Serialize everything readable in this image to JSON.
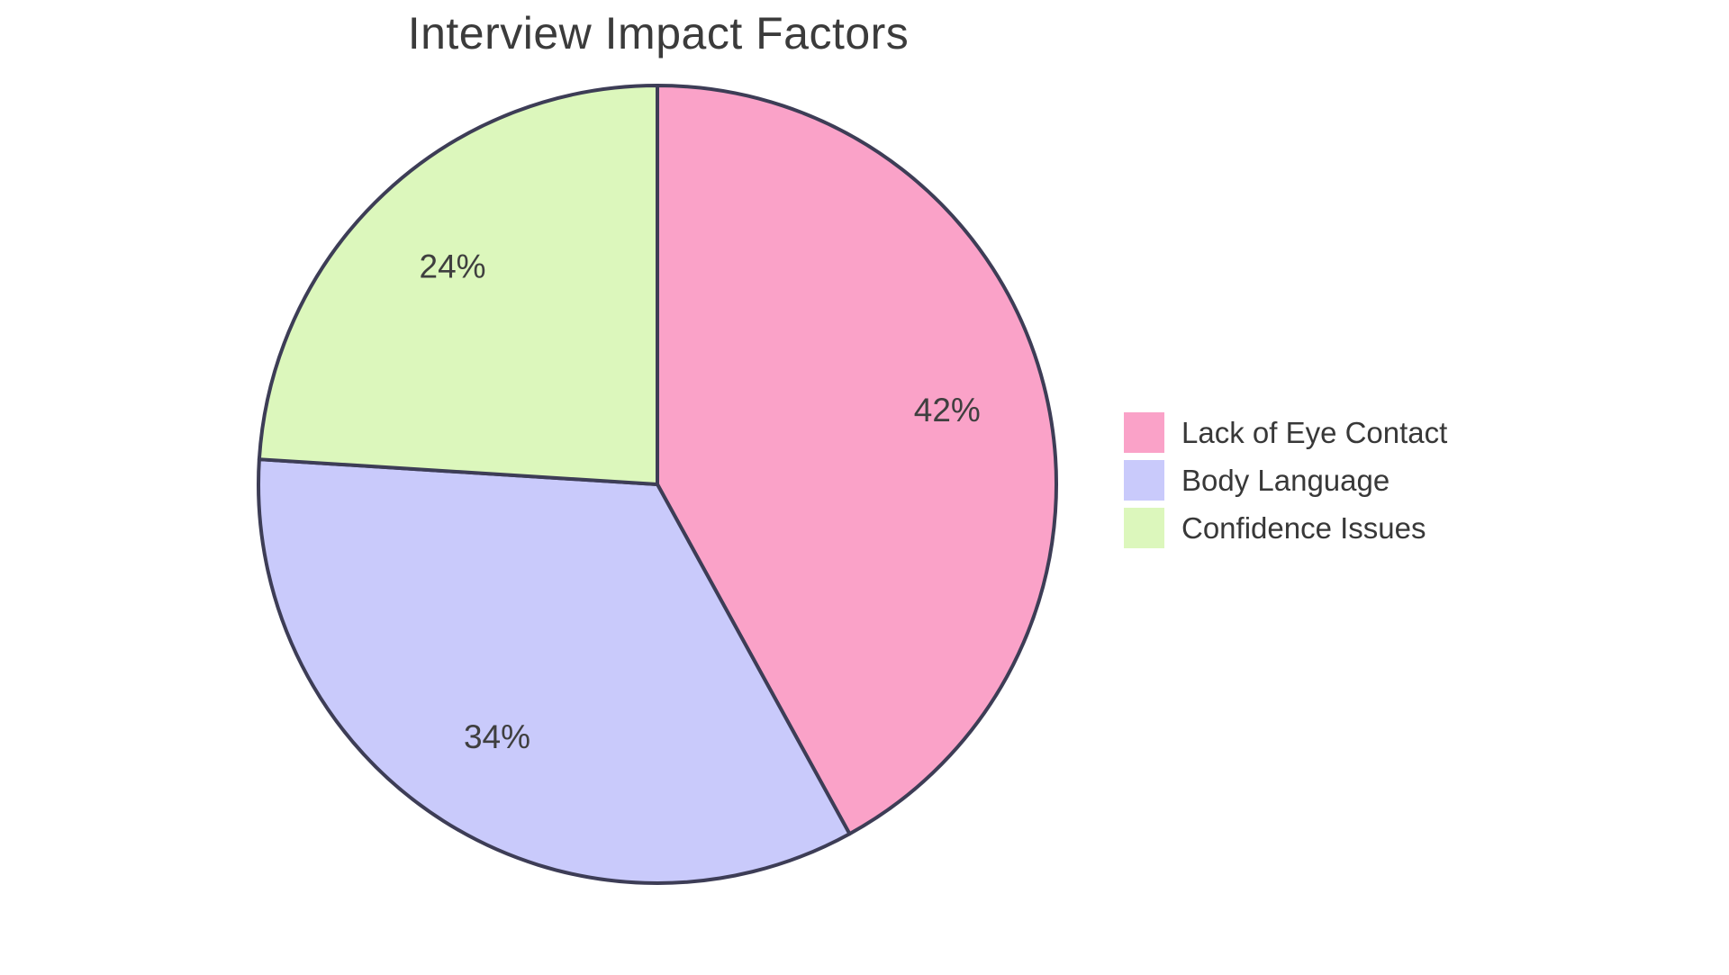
{
  "chart_data": {
    "type": "pie",
    "title": "Interview Impact Factors",
    "series": [
      {
        "label": "Lack of Eye Contact",
        "value": 42,
        "pct_label": "42%",
        "color": "#faa2c8"
      },
      {
        "label": "Body Language",
        "value": 34,
        "pct_label": "34%",
        "color": "#c9cafb"
      },
      {
        "label": "Confidence Issues",
        "value": 24,
        "pct_label": "24%",
        "color": "#dcf7bc"
      }
    ],
    "start_angle": "12 o'clock",
    "direction": "clockwise",
    "slice_edge_color": "#3d3d56",
    "percent_label_color": "#3f3f3f",
    "title_color": "#3b3b3b",
    "legend_text_color": "#383838",
    "legend_position": "right",
    "background_color": "#ffffff"
  }
}
